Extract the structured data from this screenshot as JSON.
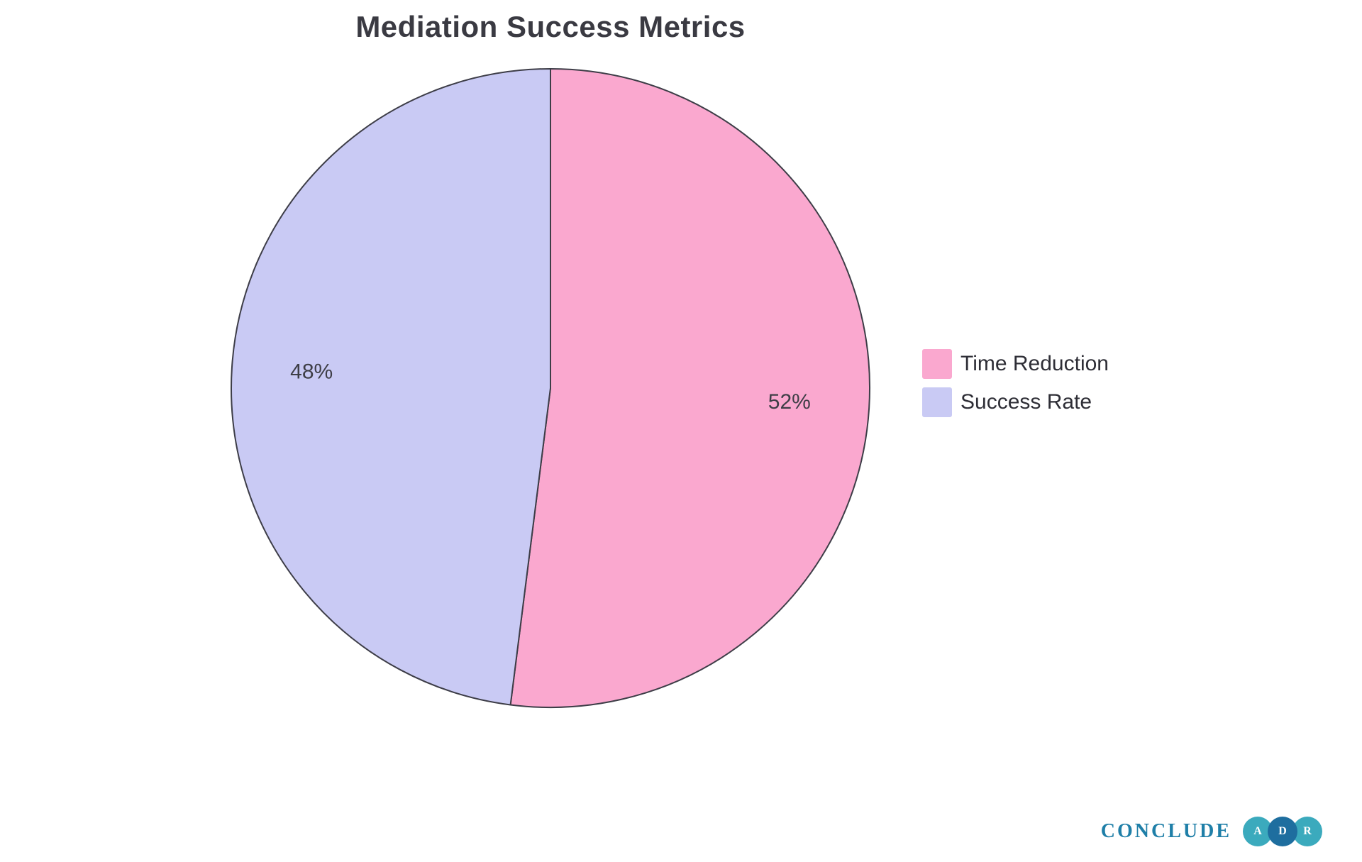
{
  "title": "Mediation Success Metrics",
  "chart_data": {
    "type": "pie",
    "title": "Mediation Success Metrics",
    "categories": [
      "Time Reduction",
      "Success Rate"
    ],
    "values": [
      52,
      48
    ],
    "slice_labels": [
      "52%",
      "48%"
    ],
    "colors": [
      "#FAA8CF",
      "#C9CAF4"
    ],
    "slice_border_color": "#3d3d47",
    "label_color": "#3e3e46",
    "legend_position": "right",
    "start_angle_deg": 0,
    "direction": "clockwise"
  },
  "logo": {
    "wordmark": "CONCLUDE",
    "wordmark_color": "#1f7fa8",
    "badges": [
      {
        "letter": "A",
        "color": "#3baabd"
      },
      {
        "letter": "D",
        "color": "#1e6e9f"
      },
      {
        "letter": "R",
        "color": "#3baabd"
      }
    ]
  }
}
